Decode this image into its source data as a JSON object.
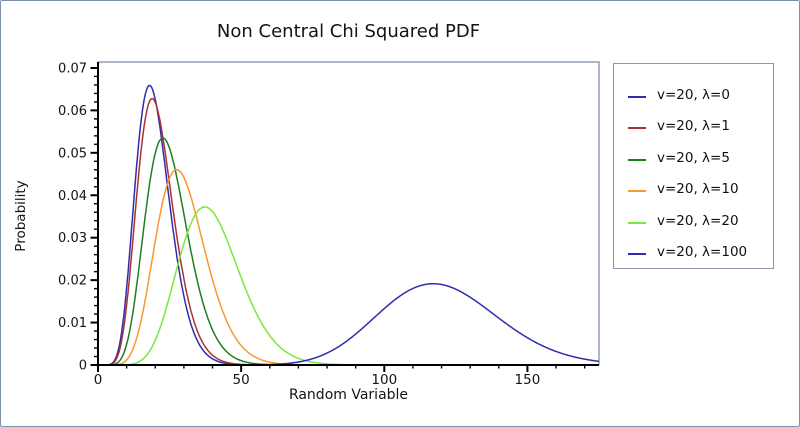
{
  "window": {
    "background": "#ffffff",
    "border_color": "#7e91a8"
  },
  "chart_data": {
    "type": "line",
    "title": "Non Central Chi Squared PDF",
    "xlabel": "Random Variable",
    "ylabel": "Probability",
    "xlim": [
      0,
      175
    ],
    "ylim": [
      0,
      0.0714
    ],
    "x_major_ticks": [
      0,
      50,
      100,
      150
    ],
    "x_minor_step": 10,
    "y_major_ticks": [
      0,
      0.01,
      0.02,
      0.03,
      0.04,
      0.05,
      0.06,
      0.07
    ],
    "y_minor_step": 0.002,
    "grid": false,
    "legend_position": "right",
    "curve_family": "noncentral chi-squared PDF, v degrees of freedom, noncentrality lambda",
    "series": [
      {
        "name": "v=20, λ=0",
        "v": 20,
        "lambda": 0,
        "color": "#2d2dad",
        "peak": {
          "x": 18,
          "y": 0.066
        }
      },
      {
        "name": "v=20, λ=1",
        "v": 20,
        "lambda": 1,
        "color": "#aa3232",
        "peak": {
          "x": 19.5,
          "y": 0.063
        }
      },
      {
        "name": "v=20, λ=5",
        "v": 20,
        "lambda": 5,
        "color": "#1f7d1f",
        "peak": {
          "x": 23,
          "y": 0.0535
        }
      },
      {
        "name": "v=20, λ=10",
        "v": 20,
        "lambda": 10,
        "color": "#f8982d",
        "peak": {
          "x": 28,
          "y": 0.046
        }
      },
      {
        "name": "v=20, λ=20",
        "v": 20,
        "lambda": 20,
        "color": "#7ce63c",
        "peak": {
          "x": 37.5,
          "y": 0.037
        }
      },
      {
        "name": "v=20, λ=100",
        "v": 20,
        "lambda": 100,
        "color": "#2d2dad",
        "peak": {
          "x": 118,
          "y": 0.019
        }
      }
    ]
  }
}
